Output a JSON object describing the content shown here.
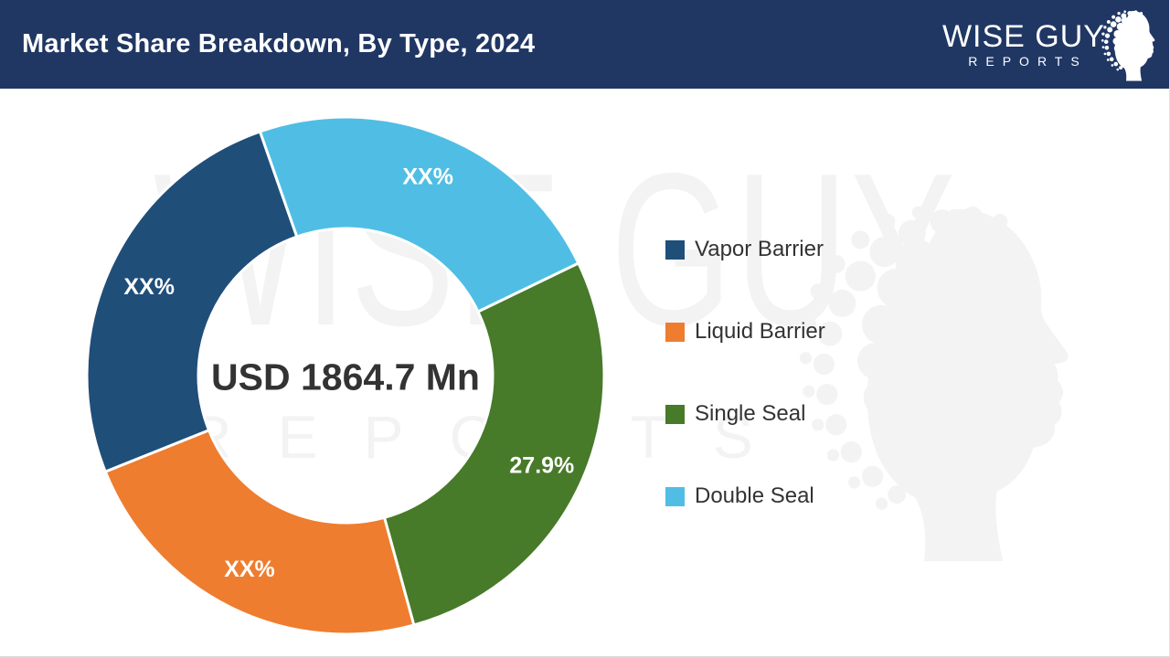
{
  "header": {
    "title": "Market Share Breakdown, By Type, 2024",
    "bg_color": "#203764",
    "logo": {
      "line1": "WISE GUY",
      "line2": "REPORTS"
    }
  },
  "watermark": {
    "line1": "WISE GUY",
    "line2": "REPORTS"
  },
  "chart_data": {
    "type": "pie",
    "subtype": "donut",
    "title": "Market Share Breakdown, By Type, 2024",
    "center_label": "USD 1864.7 Mn",
    "legend_position": "right",
    "start_angle_deg": 109.3,
    "direction": "counterclockwise",
    "slices": [
      {
        "label": "Vapor Barrier",
        "display_pct": "XX%",
        "pct_est": 25.7,
        "color": "#1F4E79"
      },
      {
        "label": "Liquid Barrier",
        "display_pct": "XX%",
        "pct_est": 23.2,
        "color": "#EE7D2F"
      },
      {
        "label": "Single Seal",
        "display_pct": "27.9%",
        "pct_est": 27.9,
        "color": "#477A29"
      },
      {
        "label": "Double Seal",
        "display_pct": "XX%",
        "pct_est": 23.2,
        "color": "#50BEE4"
      }
    ]
  }
}
